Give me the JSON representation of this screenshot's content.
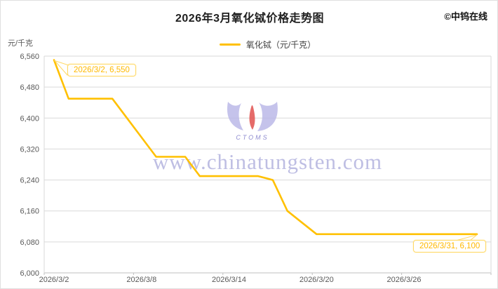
{
  "header": {
    "title": "2026年3月氧化铽价格走势图",
    "copyright": "©中钨在线"
  },
  "y_axis_unit": "元/千克",
  "legend": {
    "label": "氧化铽（元/千克）"
  },
  "watermark": {
    "url": "www.chinatungsten.com",
    "logo_caption": "CTOMS"
  },
  "annotations": {
    "first_point": "2026/3/2, 6,550",
    "last_point": "2026/3/31, 6,100"
  },
  "colors": {
    "line": "#FFC000",
    "grid": "#D9D9D9",
    "axis": "#BFBFBF",
    "border": "#D9D9D9",
    "tick_text": "#595959",
    "annotation_text": "#FFB900",
    "annotation_border": "#FFD966",
    "watermark_text": "#8888CC",
    "logo_purple": "#B7B4E6",
    "logo_red": "#E0514F"
  },
  "chart_data": {
    "type": "line",
    "title": "2026年3月氧化铽价格走势图",
    "xlabel": "",
    "ylabel": "元/千克",
    "ylim": [
      6000,
      6560
    ],
    "y_ticks": [
      6560,
      6480,
      6400,
      6320,
      6240,
      6160,
      6080,
      6000
    ],
    "x_tick_labels": [
      "2026/3/2",
      "2026/3/8",
      "2026/3/14",
      "2026/3/20",
      "2026/3/26"
    ],
    "x_tick_day_offsets": [
      0,
      6,
      12,
      18,
      24
    ],
    "grid": true,
    "legend_position": "top-center",
    "x": [
      "2026/3/2",
      "2026/3/3",
      "2026/3/4",
      "2026/3/5",
      "2026/3/6",
      "2026/3/7",
      "2026/3/8",
      "2026/3/9",
      "2026/3/10",
      "2026/3/11",
      "2026/3/12",
      "2026/3/13",
      "2026/3/14",
      "2026/3/15",
      "2026/3/16",
      "2026/3/17",
      "2026/3/18",
      "2026/3/19",
      "2026/3/20",
      "2026/3/21",
      "2026/3/22",
      "2026/3/23",
      "2026/3/24",
      "2026/3/25",
      "2026/3/26",
      "2026/3/27",
      "2026/3/28",
      "2026/3/29",
      "2026/3/30",
      "2026/3/31"
    ],
    "series": [
      {
        "name": "氧化铽",
        "unit": "元/千克",
        "values": [
          6550,
          6450,
          6450,
          6450,
          6450,
          6400,
          6350,
          6300,
          6300,
          6300,
          6250,
          6250,
          6250,
          6250,
          6250,
          6240,
          6160,
          6130,
          6100,
          6100,
          6100,
          6100,
          6100,
          6100,
          6100,
          6100,
          6100,
          6100,
          6100,
          6100
        ]
      }
    ],
    "annotated_points": [
      {
        "x": "2026/3/2",
        "y": 6550,
        "label": "2026/3/2, 6,550"
      },
      {
        "x": "2026/3/31",
        "y": 6100,
        "label": "2026/3/31, 6,100"
      }
    ]
  }
}
